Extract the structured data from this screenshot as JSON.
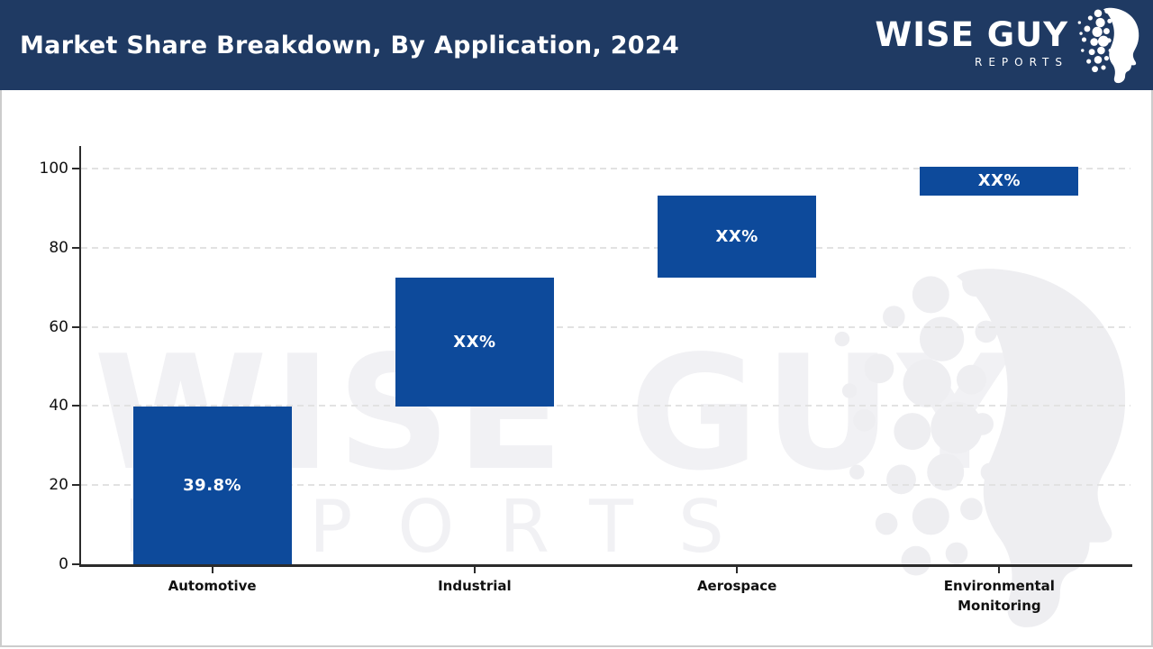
{
  "header": {
    "title": "Market Share Breakdown, By Application, 2024",
    "logo": {
      "name": "WISE GUY",
      "subname": "REPORTS"
    }
  },
  "watermark": {
    "line1": "WISE GUY",
    "line2": "REPORTS"
  },
  "chart_data": {
    "type": "waterfall",
    "title": "Market Share Breakdown, By Application, 2024",
    "categories": [
      "Automotive",
      "Industrial",
      "Aerospace",
      "Environmental Monitoring"
    ],
    "segments": [
      {
        "category": "Automotive",
        "label": "39.8%",
        "start": 0,
        "end": 39.8
      },
      {
        "category": "Industrial",
        "label": "XX%",
        "start": 39.8,
        "end": 72.4
      },
      {
        "category": "Aerospace",
        "label": "XX%",
        "start": 72.4,
        "end": 93.1
      },
      {
        "category": "Environmental Monitoring",
        "label": "XX%",
        "start": 93.1,
        "end": 100.5
      }
    ],
    "yticks": [
      0,
      20,
      40,
      60,
      80,
      100
    ],
    "ylim": [
      0,
      105.2
    ],
    "xlabel": "",
    "ylabel": "",
    "grid": "horizontal-dashed",
    "legend": "none"
  },
  "colors": {
    "header_bg": "#1f3a63",
    "bar": "#0d4a9b",
    "axis": "#2b2b2b",
    "grid": "#e2e2e2",
    "watermark": "#f1f1f4",
    "card_border": "#cccccc",
    "bar_label": "#ffffff",
    "tick_text": "#111111"
  }
}
